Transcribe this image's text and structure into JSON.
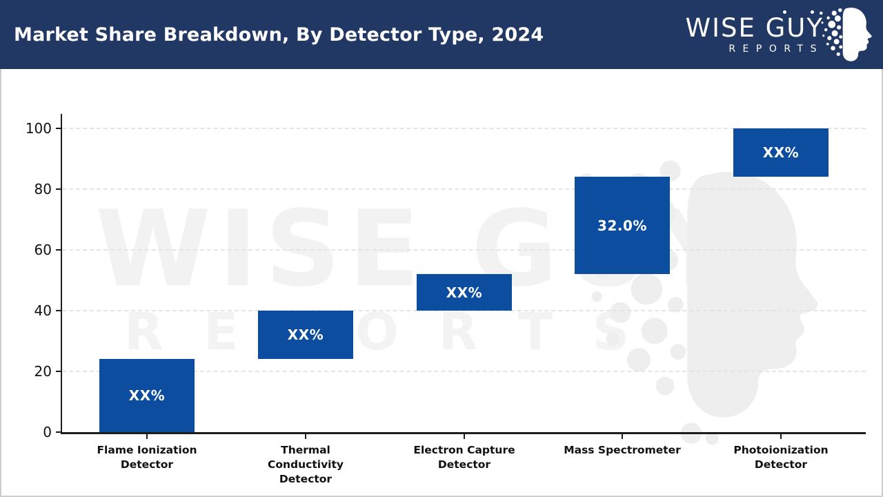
{
  "header": {
    "title": "Market Share Breakdown, By Detector Type, 2024",
    "bg_color": "#213764",
    "logo": {
      "wordmark": "WISE GUY",
      "subtitle": "REPORTS"
    }
  },
  "watermark": {
    "wordmark": "WISE GUY",
    "subtitle": "R E P O R T S"
  },
  "chart_data": {
    "type": "bar",
    "subtype": "waterfall",
    "title": "Market Share Breakdown, By Detector Type, 2024",
    "ylim": [
      0,
      105
    ],
    "yticks": [
      0,
      20,
      40,
      60,
      80,
      100
    ],
    "grid": "horizontal-dashed",
    "legend": "none",
    "bar_color": "#0C4DA0",
    "categories": [
      "Flame Ionization Detector",
      "Thermal Conductivity Detector",
      "Electron Capture Detector",
      "Mass Spectrometer",
      "Photoionization Detector"
    ],
    "category_lines": [
      [
        "Flame Ionization",
        "Detector"
      ],
      [
        "Thermal",
        "Conductivity",
        "Detector"
      ],
      [
        "Electron Capture",
        "Detector"
      ],
      [
        "Mass Spectrometer"
      ],
      [
        "Photoionization",
        "Detector"
      ]
    ],
    "segments": [
      {
        "category": "Flame Ionization Detector",
        "start": 0,
        "end": 24,
        "value": 24,
        "value_label": "XX%"
      },
      {
        "category": "Thermal Conductivity Detector",
        "start": 24,
        "end": 40,
        "value": 16,
        "value_label": "XX%"
      },
      {
        "category": "Electron Capture Detector",
        "start": 40,
        "end": 52,
        "value": 12,
        "value_label": "XX%"
      },
      {
        "category": "Mass Spectrometer",
        "start": 52,
        "end": 84,
        "value": 32,
        "value_label": "32.0%"
      },
      {
        "category": "Photoionization Detector",
        "start": 84,
        "end": 100,
        "value": 16,
        "value_label": "XX%"
      }
    ]
  }
}
